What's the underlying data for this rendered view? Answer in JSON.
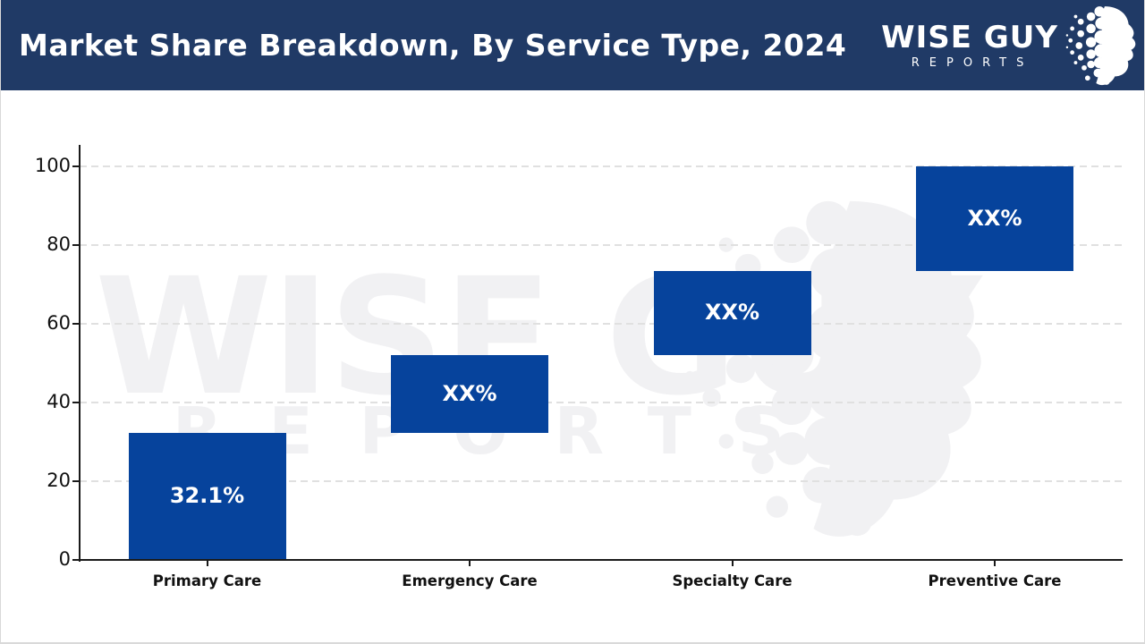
{
  "header": {
    "title": "Market Share Breakdown, By Service Type, 2024",
    "logo": {
      "name": "WISE GUY",
      "tagline": "REPORTS",
      "icon": "dot-head-profile"
    }
  },
  "watermark": {
    "name": "WISE GUY",
    "tagline": "REPORTS",
    "icon": "dot-head-profile"
  },
  "colors": {
    "header_bg": "#203a66",
    "bar": "#06439c",
    "axis": "#1a1a1a",
    "grid": "#e0e0e0",
    "watermark": "#f1f1f3",
    "bar_label_text": "#ffffff"
  },
  "chart_data": {
    "type": "bar",
    "subtype": "waterfall-floating-bars",
    "title": "Market Share Breakdown, By Service Type, 2024",
    "xlabel": "",
    "ylabel": "",
    "categories": [
      "Primary Care",
      "Emergency Care",
      "Specialty Care",
      "Preventive Care"
    ],
    "segments": [
      {
        "category": "Primary Care",
        "start": 0,
        "end": 32.1,
        "label": "32.1%"
      },
      {
        "category": "Emergency Care",
        "start": 32.1,
        "end": 52.0,
        "label": "XX%"
      },
      {
        "category": "Specialty Care",
        "start": 52.0,
        "end": 73.3,
        "label": "XX%"
      },
      {
        "category": "Preventive Care",
        "start": 73.3,
        "end": 100.0,
        "label": "XX%"
      }
    ],
    "yticks": [
      0,
      20,
      40,
      60,
      80,
      100
    ],
    "ylim": [
      0,
      105
    ],
    "grid": "horizontal-dashed",
    "legend": "none"
  }
}
